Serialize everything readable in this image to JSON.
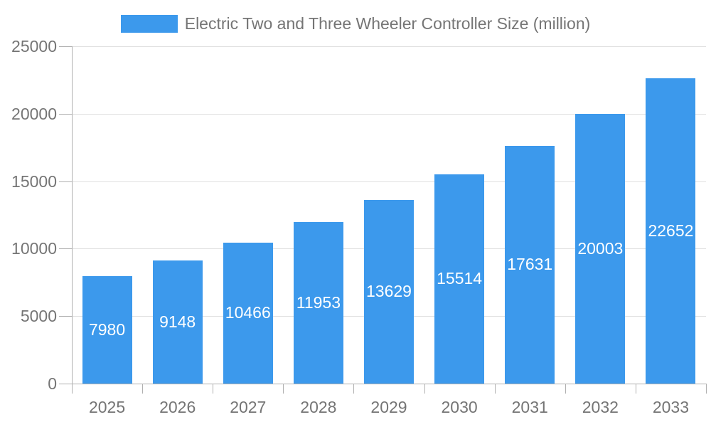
{
  "chart_data": {
    "type": "bar",
    "title": "Electric Two and Three Wheeler Controller Size (million)",
    "legend": [
      "Electric Two and Three Wheeler Controller Size (million)"
    ],
    "legend_position": "top",
    "categories": [
      "2025",
      "2026",
      "2027",
      "2028",
      "2029",
      "2030",
      "2031",
      "2032",
      "2033"
    ],
    "series": [
      {
        "name": "Electric Two and Three Wheeler Controller Size (million)",
        "values": [
          7980,
          9148,
          10466,
          11953,
          13629,
          15514,
          17631,
          20003,
          22652
        ]
      }
    ],
    "value_labels": [
      7980,
      9148,
      10466,
      11953,
      13629,
      15514,
      17631,
      20003,
      22652
    ],
    "xlabel": "",
    "ylabel": "",
    "ylim": [
      0,
      25000
    ],
    "yticks": [
      0,
      5000,
      10000,
      15000,
      20000,
      25000
    ],
    "grid": true,
    "colors": {
      "bar": "#3c99ec",
      "bar_value_text": "#ffffff",
      "axis": "#b0b0b0",
      "gridline": "#e0e0e0",
      "tick_text": "#757575",
      "legend_text": "#757575",
      "background": "#ffffff"
    }
  }
}
